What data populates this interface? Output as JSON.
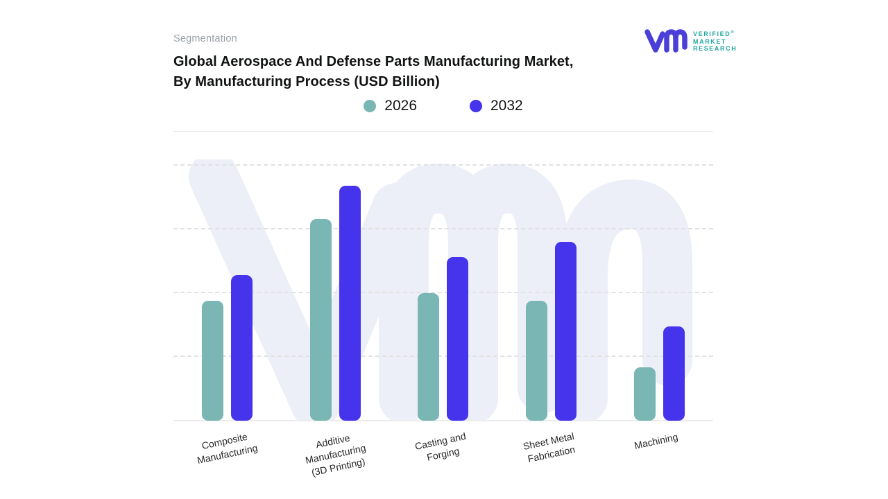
{
  "header": {
    "eyebrow": "Segmentation",
    "title_line1": "Global Aerospace And Defense Parts Manufacturing Market,",
    "title_line2": "By Manufacturing Process (USD Billion)"
  },
  "logo": {
    "wordmark_line1": "VERIFIED",
    "wordmark_line2": "MARKET",
    "wordmark_line3": "RESEARCH",
    "registered_symbol": "®",
    "mark_color": "#4b3fd8",
    "wordmark_color": "#23a69f"
  },
  "chart_data": {
    "type": "bar",
    "title": "Global Aerospace And Defense Parts Manufacturing Market, By Manufacturing Process (USD Billion)",
    "xlabel": "Manufacturing Process",
    "ylabel": "Market Size (USD Billion)",
    "value_axis_labels_shown": false,
    "ylim": [
      0,
      100
    ],
    "gridlines": [
      25,
      50,
      75,
      100
    ],
    "grid_style": "dashed",
    "legend_position": "top-center",
    "categories": [
      {
        "label": "Composite Manufacturing",
        "lines": [
          "Composite",
          "Manufacturing"
        ]
      },
      {
        "label": "Additive Manufacturing (3D Printing)",
        "lines": [
          "Additive",
          "Manufacturing",
          "(3D Printing)"
        ]
      },
      {
        "label": "Casting and Forging",
        "lines": [
          "Casting and",
          "Forging"
        ]
      },
      {
        "label": "Sheet Metal Fabrication",
        "lines": [
          "Sheet Metal",
          "Fabrication"
        ]
      },
      {
        "label": "Machining",
        "lines": [
          "Machining"
        ]
      }
    ],
    "series": [
      {
        "name": "2026",
        "color": "#7ab6b3",
        "values": [
          47,
          79,
          50,
          47,
          21
        ]
      },
      {
        "name": "2032",
        "color": "#4534ec",
        "values": [
          57,
          92,
          64,
          70,
          37
        ]
      }
    ]
  },
  "style": {
    "watermark_color": "#edeff8",
    "gridline_color": "#e1e1e3",
    "baseline_color": "#ececec"
  }
}
